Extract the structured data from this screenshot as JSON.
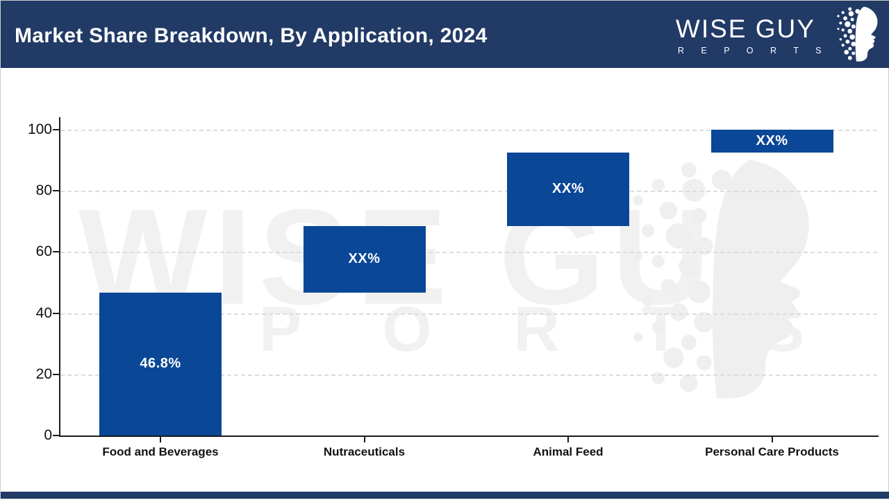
{
  "header": {
    "title": "Market Share Breakdown, By Application, 2024",
    "bg_color": "#213a66",
    "logo": {
      "line1": "WISE GUY",
      "line2": "R E P O R T S"
    }
  },
  "watermark": {
    "line1": "WISE GUY",
    "line2": "P O R T S"
  },
  "colors": {
    "header_navy": "#213a66",
    "bar_blue": "#0a4796",
    "gridline": "#dcdcdc",
    "watermark_gray": "#f1f1f1"
  },
  "chart_data": {
    "type": "bar",
    "subtype": "waterfall",
    "title": "Market Share Breakdown, By Application, 2024",
    "categories": [
      "Food and Beverages",
      "Nutraceuticals",
      "Animal Feed",
      "Personal Care Products"
    ],
    "segments": [
      {
        "category": "Food and Beverages",
        "start": 0,
        "end": 46.8,
        "label": "46.8%"
      },
      {
        "category": "Nutraceuticals",
        "start": 46.8,
        "end": 68.5,
        "label": "XX%"
      },
      {
        "category": "Animal Feed",
        "start": 68.5,
        "end": 92.5,
        "label": "XX%"
      },
      {
        "category": "Personal Care Products",
        "start": 92.5,
        "end": 100,
        "label": "XX%"
      }
    ],
    "y_ticks": [
      0,
      20,
      40,
      60,
      80,
      100
    ],
    "ylim": [
      0,
      100
    ],
    "xlabel": "",
    "ylabel": "",
    "grid": "dashed-horizontal",
    "legend": "none",
    "bar_color": "#0a4796",
    "value_label_color": "#ffffff"
  }
}
